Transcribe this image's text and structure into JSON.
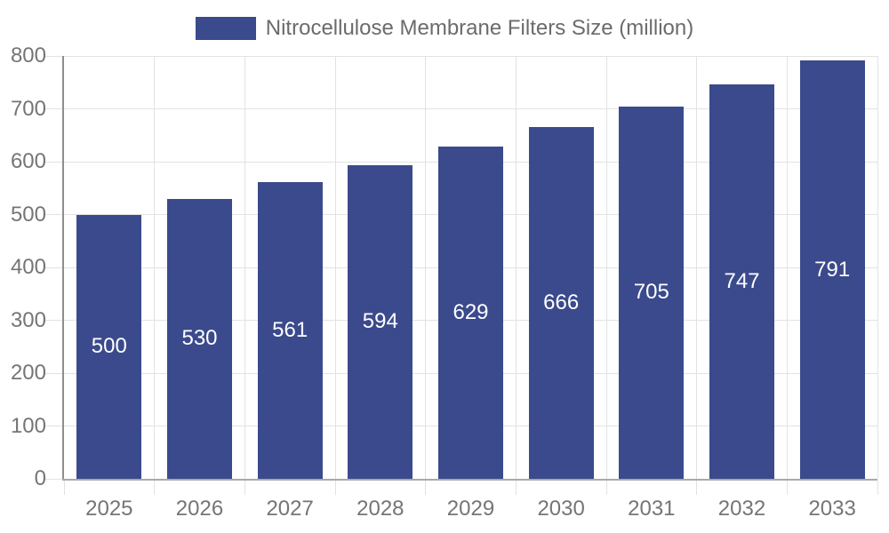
{
  "legend": {
    "label": "Nitrocellulose Membrane Filters Size (million)",
    "swatch_color": "#3B4A8C"
  },
  "chart_data": {
    "type": "bar",
    "title": "Nitrocellulose Membrane Filters Size (million)",
    "categories": [
      "2025",
      "2026",
      "2027",
      "2028",
      "2029",
      "2030",
      "2031",
      "2032",
      "2033"
    ],
    "values": [
      500,
      530,
      561,
      594,
      629,
      666,
      705,
      747,
      791
    ],
    "xlabel": "",
    "ylabel": "",
    "ylim": [
      0,
      800
    ],
    "yticks": [
      0,
      100,
      200,
      300,
      400,
      500,
      600,
      700,
      800
    ],
    "bar_color": "#3B4A8C",
    "value_label_color": "#FFFFFF",
    "grid": true,
    "legend_position": "top"
  },
  "style": {
    "background": "#FFFFFF",
    "grid_color": "#E2E2E2",
    "y_axis_color": "#8E8E8E",
    "x_axis_color": "#A9A9A9",
    "tick_label_color": "#757575",
    "legend_text_color": "#6B6B6B"
  }
}
